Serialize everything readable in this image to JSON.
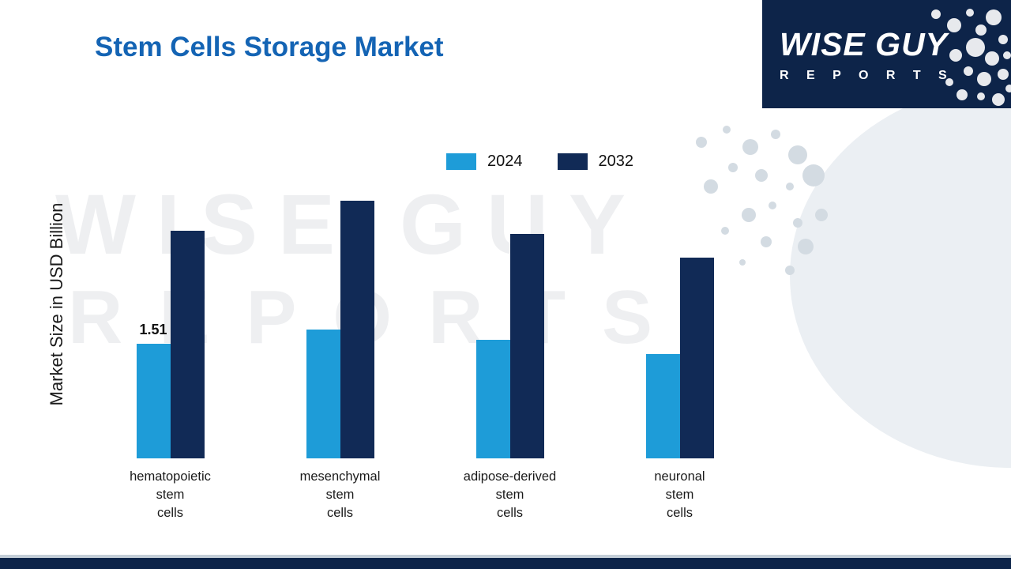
{
  "page": {
    "title": "Stem Cells Storage Market"
  },
  "brand": {
    "name_top": "WISE GUY",
    "name_bottom": "R E P O R T S"
  },
  "watermark": {
    "line1": "WISE GUY",
    "line2": "REPORTS"
  },
  "colors": {
    "title_blue": "#1464b4",
    "bar_2024": "#1e9cd8",
    "bar_2032": "#112a56",
    "brand_navy": "#0d2449"
  },
  "chart_data": {
    "type": "bar",
    "title": "Stem Cells Storage Market",
    "xlabel": "",
    "ylabel": "Market Size in USD Billion",
    "ylim": [
      0,
      3.6
    ],
    "grid": false,
    "legend_position": "top",
    "categories": [
      "hematopoietic\nstem\ncells",
      "mesenchymal\nstem\ncells",
      "adipose-derived\nstem\ncells",
      "neuronal\nstem\ncells"
    ],
    "series": [
      {
        "name": "2024",
        "color": "#1e9cd8",
        "values": [
          1.51,
          1.7,
          1.56,
          1.38
        ]
      },
      {
        "name": "2032",
        "color": "#112a56",
        "values": [
          3.0,
          3.4,
          2.96,
          2.65
        ]
      }
    ],
    "bar_label": {
      "category_index": 0,
      "series_index": 0,
      "text": "1.51"
    }
  }
}
